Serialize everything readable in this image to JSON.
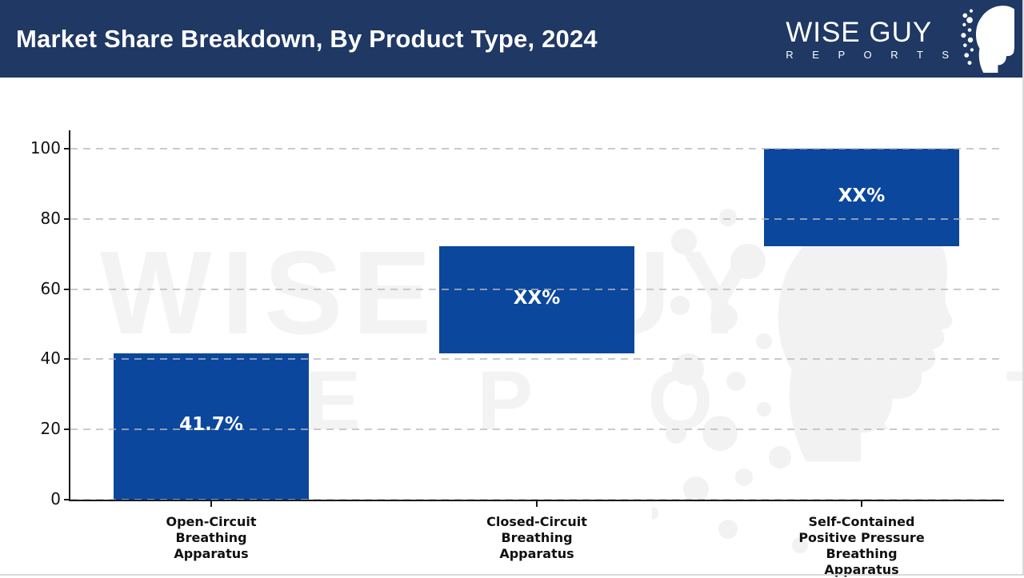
{
  "header": {
    "title": "Market Share Breakdown, By Product Type, 2024",
    "bg_color": "#1f3864",
    "logo": {
      "line1": "WISE GUY",
      "line2": "R E P O R T S"
    }
  },
  "watermark": {
    "line1": "WISE GUY",
    "line2": "R E P O R T S"
  },
  "chart_data": {
    "type": "bar",
    "subtype": "stacked-waterfall",
    "title": "Market Share Breakdown, By Product Type, 2024",
    "categories": [
      [
        "Open-Circuit",
        "Breathing",
        "Apparatus"
      ],
      [
        "Closed-Circuit",
        "Breathing",
        "Apparatus"
      ],
      [
        "Self-Contained",
        "Positive Pressure",
        "Breathing",
        "Apparatus"
      ]
    ],
    "segments": [
      {
        "label": "41.7%",
        "start": 0,
        "end": 41.7
      },
      {
        "label": "XX%",
        "start": 41.7,
        "end": 72.2
      },
      {
        "label": "XX%",
        "start": 72.2,
        "end": 100
      }
    ],
    "y_ticks": [
      0,
      20,
      40,
      60,
      80,
      100
    ],
    "ylim": [
      0,
      100
    ],
    "xlabel": "",
    "ylabel": "",
    "bar_color": "#0b479c",
    "grid": "dashed-horizontal",
    "legend": "none"
  }
}
